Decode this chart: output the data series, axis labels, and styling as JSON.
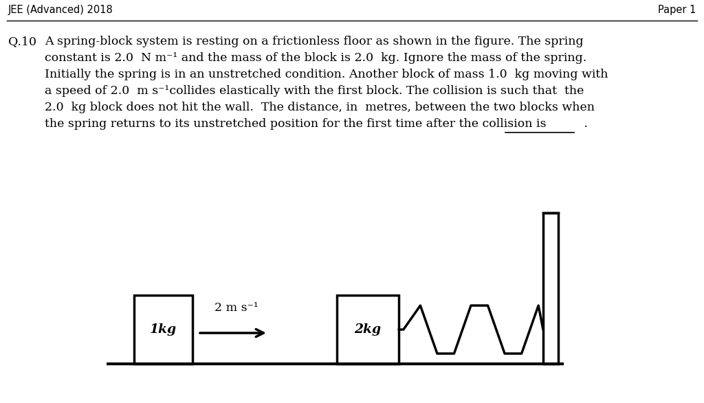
{
  "header_left": "JEE (Advanced) 2018",
  "header_right": "Paper 1",
  "question_number": "Q.10",
  "line1": "A spring-block system is resting on a frictionless floor as shown in the figure. The spring",
  "line2": "constant is 2.0  N m⁻¹ and the mass of the block is 2.0  kg. Ignore the mass of the spring.",
  "line3": "Initially the spring is in an unstretched condition. Another block of mass 1.0  kg moving with",
  "line4": "a speed of 2.0  m s⁻¹collides elastically with the first block. The collision is such that  the",
  "line5": "2.0  kg block does not hit the wall.  The distance, in  metres, between the two blocks when",
  "line6": "the spring returns to its unstretched position for the first time after the collision is          .",
  "bg_color": "#ffffff",
  "text_color": "#000000",
  "block1_label": "1kg",
  "block2_label": "2kg",
  "arrow_label": "2 m s⁻¹"
}
